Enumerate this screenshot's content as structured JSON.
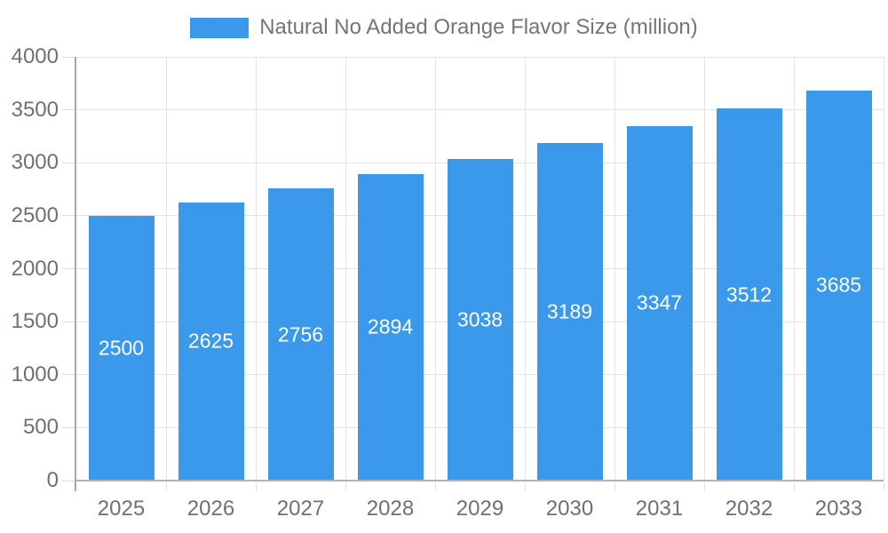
{
  "chart_data": {
    "type": "bar",
    "title": "Natural No Added Orange Flavor Size (million)",
    "categories": [
      "2025",
      "2026",
      "2027",
      "2028",
      "2029",
      "2030",
      "2031",
      "2032",
      "2033"
    ],
    "values": [
      2500,
      2625,
      2756,
      2894,
      3038,
      3189,
      3347,
      3512,
      3685
    ],
    "xlabel": "",
    "ylabel": "",
    "ylim": [
      0,
      4000
    ],
    "yticks": [
      0,
      500,
      1000,
      1500,
      2000,
      2500,
      3000,
      3500,
      4000
    ],
    "grid": true,
    "legend_position": "top-center",
    "bar_color": "#3b99ec",
    "value_label_color": "#ffffff",
    "axis_label_color": "#707070",
    "legend_text_color": "#757575",
    "gridline_color": "#e3e3e3"
  }
}
